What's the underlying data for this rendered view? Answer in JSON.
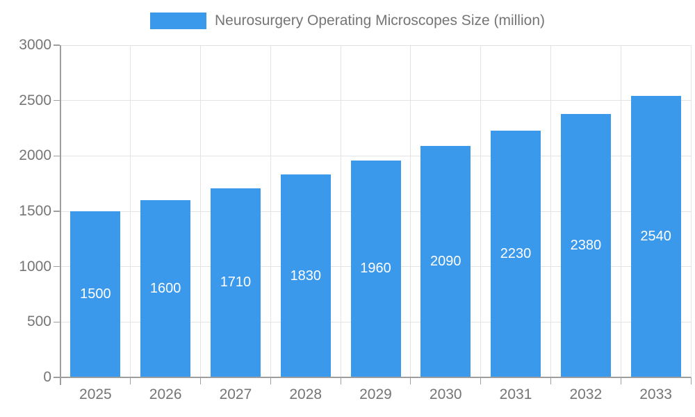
{
  "chart_data": {
    "type": "bar",
    "title": "Neurosurgery Operating Microscopes Size (million)",
    "categories": [
      "2025",
      "2026",
      "2027",
      "2028",
      "2029",
      "2030",
      "2031",
      "2032",
      "2033"
    ],
    "series": [
      {
        "name": "Neurosurgery Operating Microscopes Size (million)",
        "values": [
          1500,
          1600,
          1710,
          1830,
          1960,
          2090,
          2230,
          2380,
          2540
        ]
      }
    ],
    "xlabel": "",
    "ylabel": "",
    "ylim": [
      0,
      3000
    ],
    "yticks": [
      0,
      500,
      1000,
      1500,
      2000,
      2500,
      3000
    ],
    "grid": true,
    "legend_position": "top",
    "value_labels": "inside-center",
    "colors": {
      "bar": "#3B99EC",
      "grid": "#E3E3E3",
      "axis": "#9E9E9E",
      "tick_label": "#757575",
      "value_label": "#FFFFFF",
      "background": "#FFFFFF"
    }
  }
}
